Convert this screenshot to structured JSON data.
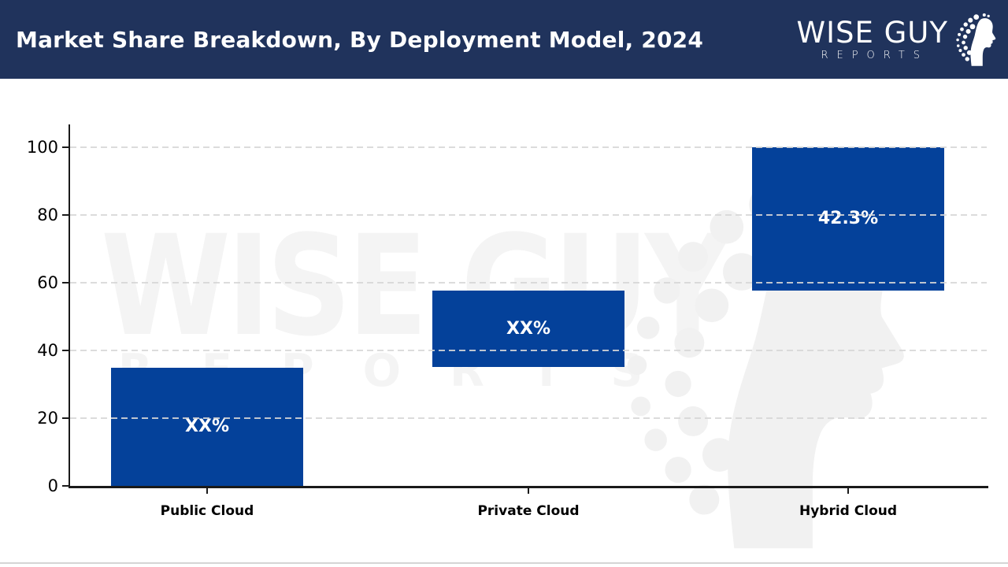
{
  "header": {
    "title": "Market Share Breakdown, By Deployment Model, 2024",
    "logo": {
      "line1": "WISE GUY",
      "line2": "REPORTS"
    }
  },
  "watermark": {
    "line1": "WISE GUY",
    "line2": "REPORTS"
  },
  "colors": {
    "header_bg": "#20335c",
    "bar_blue": "#04419a",
    "bar_label": "#ffffff",
    "grid_gray": "#d7d7d7",
    "axis_black": "#1a1a1a",
    "watermark_gray": "#f2f2f2"
  },
  "chart_data": {
    "type": "bar",
    "subtype": "stacked-waterfall-floating",
    "title": "Market Share Breakdown, By Deployment Model, 2024",
    "categories": [
      "Public Cloud",
      "Private Cloud",
      "Hybrid Cloud"
    ],
    "segments": [
      {
        "category": "Public Cloud",
        "label": "XX%",
        "start": 0,
        "end": 35,
        "value": 35,
        "value_masked": true
      },
      {
        "category": "Private Cloud",
        "label": "XX%",
        "start": 35,
        "end": 57.7,
        "value": 22.7,
        "value_masked": true
      },
      {
        "category": "Hybrid Cloud",
        "label": "42.3%",
        "start": 57.7,
        "end": 100,
        "value": 42.3,
        "value_masked": false
      }
    ],
    "ylabel": "",
    "xlabel": "",
    "ylim": [
      0,
      100
    ],
    "yticks": [
      0,
      20,
      40,
      60,
      80,
      100
    ],
    "grid": "horizontal-dashed-over-bars",
    "legend": "none",
    "bar_color": "#04419a",
    "bar_label_color": "#ffffff"
  }
}
